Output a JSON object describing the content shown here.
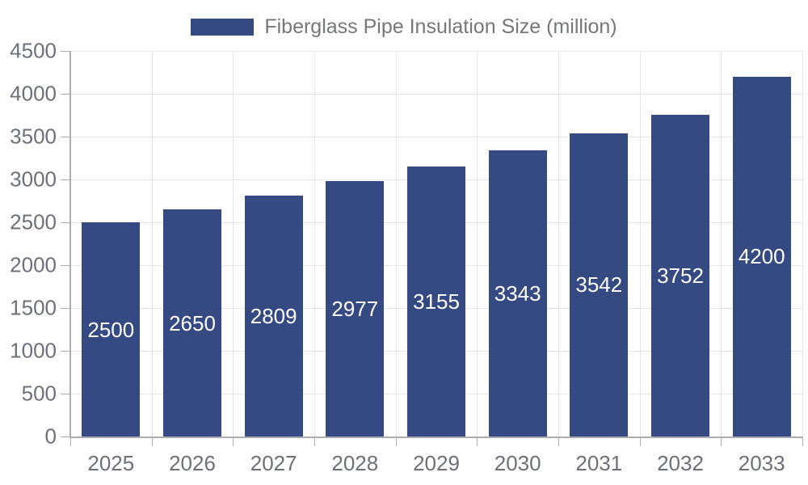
{
  "chart_data": {
    "type": "bar",
    "title": "Fiberglass Pipe Insulation Size (million)",
    "legend": [
      "Fiberglass Pipe Insulation Size (million)"
    ],
    "legend_position": "top-center",
    "categories": [
      "2025",
      "2026",
      "2027",
      "2028",
      "2029",
      "2030",
      "2031",
      "2032",
      "2033"
    ],
    "values": [
      2500,
      2650,
      2809,
      2977,
      3155,
      3343,
      3542,
      3752,
      4200
    ],
    "bar_value_labels_inside": true,
    "xlabel": "",
    "ylabel": "",
    "ylim": [
      0,
      4500
    ],
    "yticks": [
      0,
      500,
      1000,
      1500,
      2000,
      2500,
      3000,
      3500,
      4000,
      4500
    ],
    "grid": true
  },
  "colors": {
    "bar_fill": "#354A83",
    "bar_label_text": "#FFFFFF",
    "legend_text": "#76777B",
    "axis_label_text": "#6E7079",
    "axis_line": "#ABADB2",
    "gridline": "#E3E5E9",
    "background": "#FFFFFF"
  }
}
